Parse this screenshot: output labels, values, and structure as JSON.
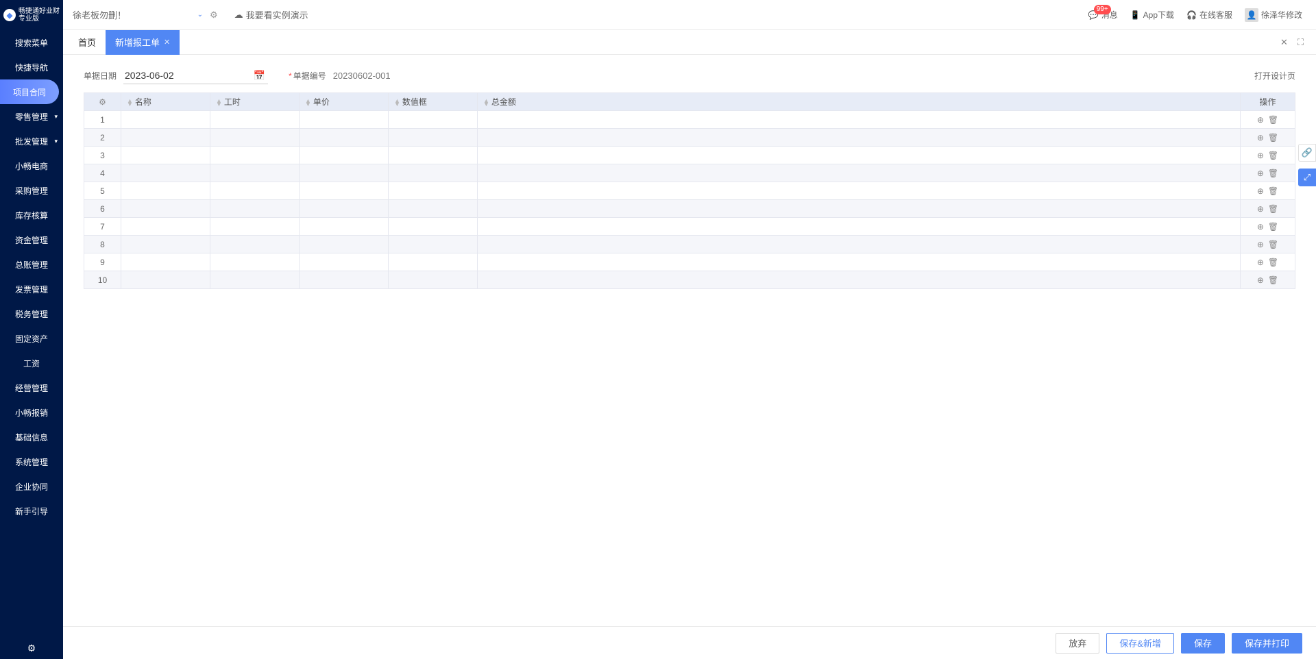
{
  "brand": {
    "name": "畅捷通好业财",
    "edition": "专业版"
  },
  "sidebar": {
    "items": [
      {
        "label": "搜索菜单",
        "expandable": false
      },
      {
        "label": "快捷导航",
        "expandable": false
      },
      {
        "label": "项目合同",
        "expandable": false,
        "active": true
      },
      {
        "label": "零售管理",
        "expandable": true
      },
      {
        "label": "批发管理",
        "expandable": true
      },
      {
        "label": "小畅电商",
        "expandable": false
      },
      {
        "label": "采购管理",
        "expandable": false
      },
      {
        "label": "库存核算",
        "expandable": false
      },
      {
        "label": "资金管理",
        "expandable": false
      },
      {
        "label": "总账管理",
        "expandable": false
      },
      {
        "label": "发票管理",
        "expandable": false
      },
      {
        "label": "税务管理",
        "expandable": false
      },
      {
        "label": "固定资产",
        "expandable": false
      },
      {
        "label": "工资",
        "expandable": false
      },
      {
        "label": "经营管理",
        "expandable": false
      },
      {
        "label": "小畅报销",
        "expandable": false
      },
      {
        "label": "基础信息",
        "expandable": false
      },
      {
        "label": "系统管理",
        "expandable": false
      },
      {
        "label": "企业协同",
        "expandable": false
      },
      {
        "label": "新手引导",
        "expandable": false
      }
    ]
  },
  "topbar": {
    "workspace": "徐老板勿删！",
    "demo_link": "我要看实例演示",
    "messages": {
      "label": "消息",
      "badge": "99+"
    },
    "app_download": "App下载",
    "online_service": "在线客服",
    "username": "徐泽华修改"
  },
  "tabs": {
    "home": "首页",
    "active": "新增报工单"
  },
  "form": {
    "date_label": "单据日期",
    "date_value": "2023-06-02",
    "doc_no_label": "单据编号",
    "doc_no_placeholder": "20230602-001",
    "design_link": "打开设计页"
  },
  "table": {
    "columns": {
      "name": "名称",
      "hours": "工时",
      "unit_price": "单价",
      "value_box": "数值框",
      "total": "总金额",
      "actions": "操作"
    },
    "row_count": 10
  },
  "footer": {
    "discard": "放弃",
    "save_and_new": "保存&新增",
    "save": "保存",
    "save_and_print": "保存并打印"
  },
  "colors": {
    "sidebar_bg": "#001847",
    "primary": "#5187f4",
    "header_row_bg": "#e7ecf7",
    "row_alt_bg": "#f5f6fa",
    "badge_bg": "#ff4d4f"
  }
}
